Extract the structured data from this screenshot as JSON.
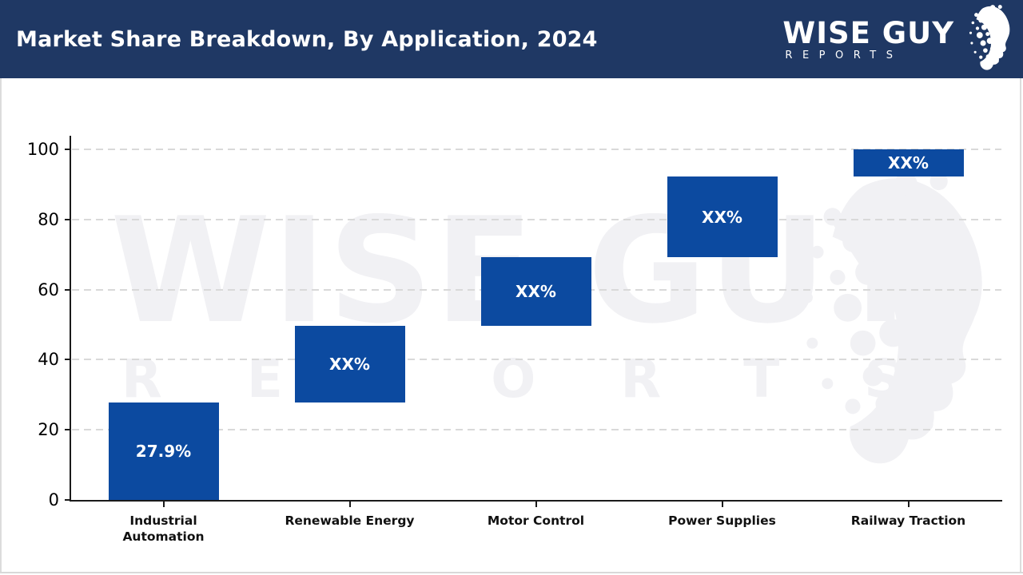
{
  "header": {
    "title": "Market Share Breakdown, By Application, 2024",
    "logo": {
      "wordmark": "WISE GUY",
      "subtext": "REPORTS",
      "icon": "dotted-face-profile-icon"
    }
  },
  "watermark": {
    "line1": "WISE GUY",
    "line2": "REPORTS",
    "icon": "dotted-face-profile-watermark"
  },
  "colors": {
    "header_bg": "#1f3864",
    "bar": "#0c4aa0",
    "grid": "#d9d9d9",
    "axis": "#1a1a1a",
    "bar_label": "#ffffff",
    "watermark": "#f1f1f4"
  },
  "chart_data": {
    "type": "bar",
    "subtype": "waterfall",
    "title": "Market Share Breakdown, By Application, 2024",
    "categories": [
      "Industrial Automation",
      "Renewable Energy",
      "Motor Control",
      "Power Supplies",
      "Railway Traction"
    ],
    "segments": [
      {
        "category": "Industrial Automation",
        "start": 0,
        "end": 27.9,
        "value": 27.9,
        "label": "27.9%"
      },
      {
        "category": "Renewable Energy",
        "start": 27.9,
        "end": 49.7,
        "value": 21.8,
        "label": "XX%"
      },
      {
        "category": "Motor Control",
        "start": 49.7,
        "end": 69.2,
        "value": 19.5,
        "label": "XX%"
      },
      {
        "category": "Power Supplies",
        "start": 69.2,
        "end": 92.3,
        "value": 23.1,
        "label": "XX%"
      },
      {
        "category": "Railway Traction",
        "start": 92.3,
        "end": 100,
        "value": 7.7,
        "label": "XX%"
      }
    ],
    "xlabel": "",
    "ylabel": "",
    "ylim": [
      0,
      100
    ],
    "yticks": [
      0,
      20,
      40,
      60,
      80,
      100
    ],
    "grid": "horizontal-dashed",
    "legend": "none"
  }
}
